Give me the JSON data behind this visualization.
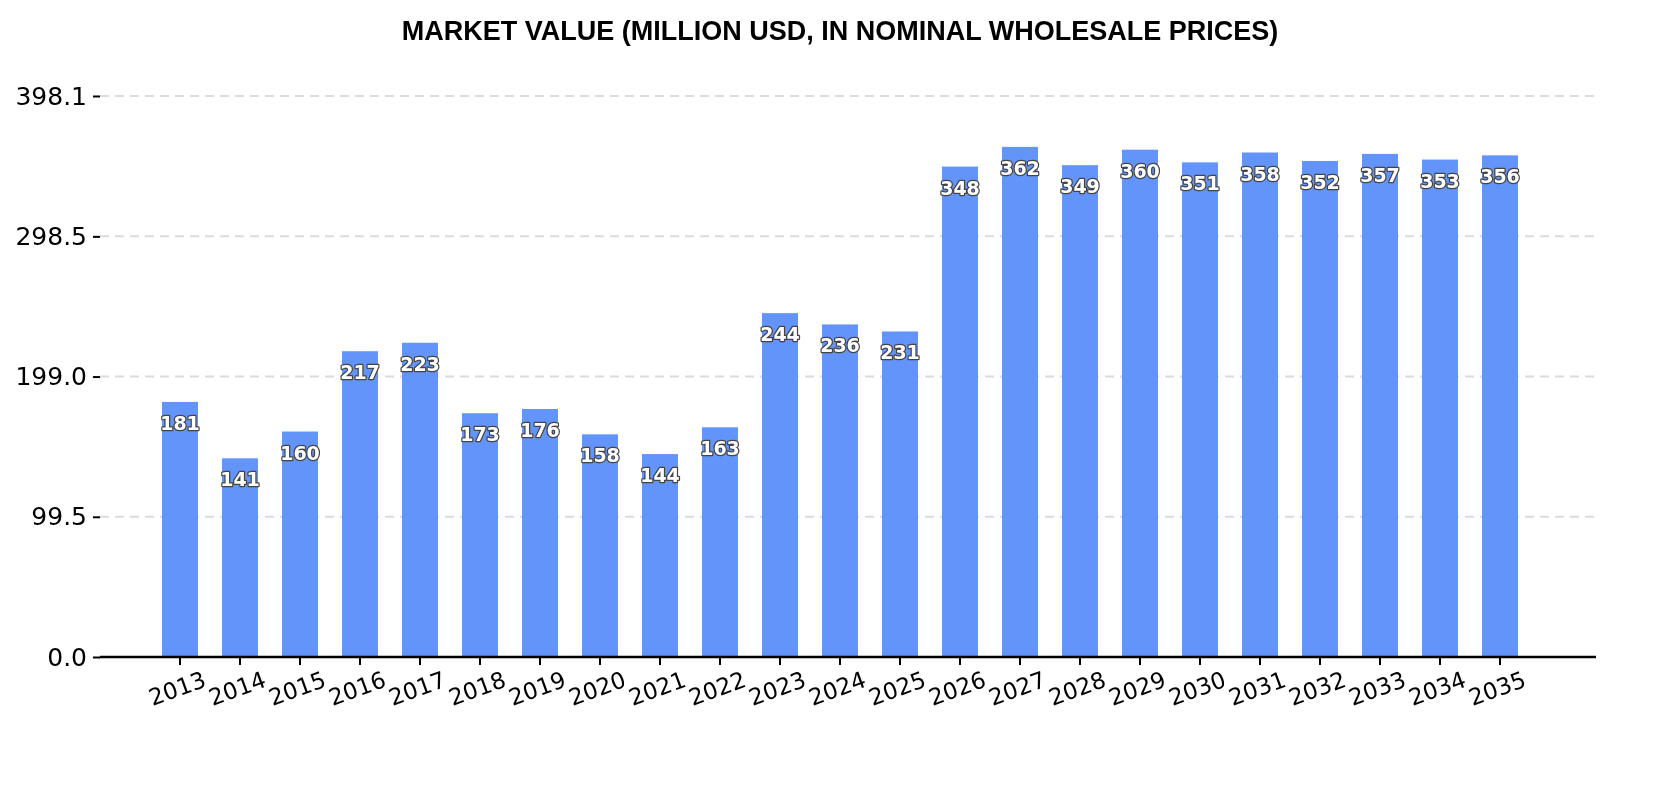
{
  "chart_data": {
    "type": "bar",
    "title": "MARKET VALUE (MILLION USD, IN NOMINAL WHOLESALE PRICES)",
    "categories": [
      "2013",
      "2014",
      "2015",
      "2016",
      "2017",
      "2018",
      "2019",
      "2020",
      "2021",
      "2022",
      "2023",
      "2024",
      "2025",
      "2026",
      "2027",
      "2028",
      "2029",
      "2030",
      "2031",
      "2032",
      "2033",
      "2034",
      "2035"
    ],
    "values": [
      181,
      141,
      160,
      217,
      223,
      173,
      176,
      158,
      144,
      163,
      244,
      236,
      231,
      348,
      362,
      349,
      360,
      351,
      358,
      352,
      357,
      353,
      356
    ],
    "color": "#6394f9",
    "ylim": [
      0,
      398.1
    ],
    "yticks": [
      {
        "value": 0,
        "label": "0.0"
      },
      99.5,
      {
        "value": 199,
        "label": "199.0"
      },
      298.5,
      398.1
    ],
    "grid": "y",
    "data_labels": true
  }
}
